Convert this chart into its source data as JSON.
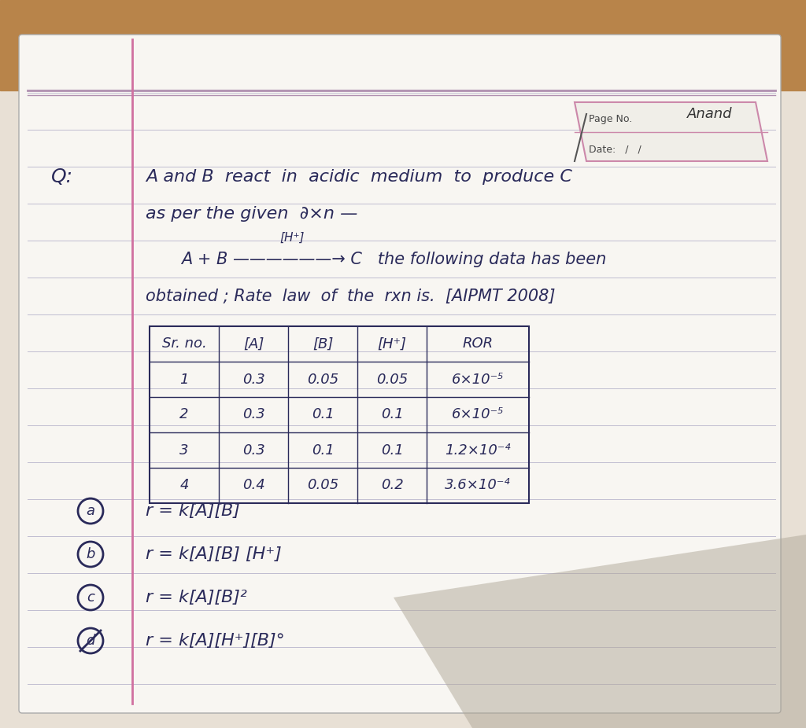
{
  "bg_color": "#e8e0d5",
  "paper_color": "#f8f6f2",
  "line_color": "#c0bdd0",
  "margin_line_color": "#d070a0",
  "title_label": "Anand",
  "page_no_label": "Page No.",
  "date_label": "Date:   /   /",
  "ink_color": "#2a2a5a",
  "table_headers": [
    "Sr. no.",
    "[A]",
    "[B]",
    "[H⁺]",
    "ROR"
  ],
  "table_rows": [
    [
      "1",
      "0.3",
      "0.05",
      "0.05",
      "6×10⁻⁵"
    ],
    [
      "2",
      "0.3",
      "0.1",
      "0.1",
      "6×10⁻⁵"
    ],
    [
      "3",
      "0.3",
      "0.1",
      "0.1",
      "1.2×10⁻⁴"
    ],
    [
      "4",
      "0.4",
      "0.05",
      "0.2",
      "3.6×10⁻⁴"
    ]
  ],
  "option_labels": [
    "a",
    "b",
    "c",
    "d"
  ],
  "option_expressions": [
    "r = k[A][B]",
    "r = k[A][B] [H⁺]",
    "r = k[A][B]²",
    "r = k[A][H⁺][B]°"
  ],
  "circled_option": 3,
  "desk_color": "#b8844a",
  "shadow_color": "#9a9ab0"
}
